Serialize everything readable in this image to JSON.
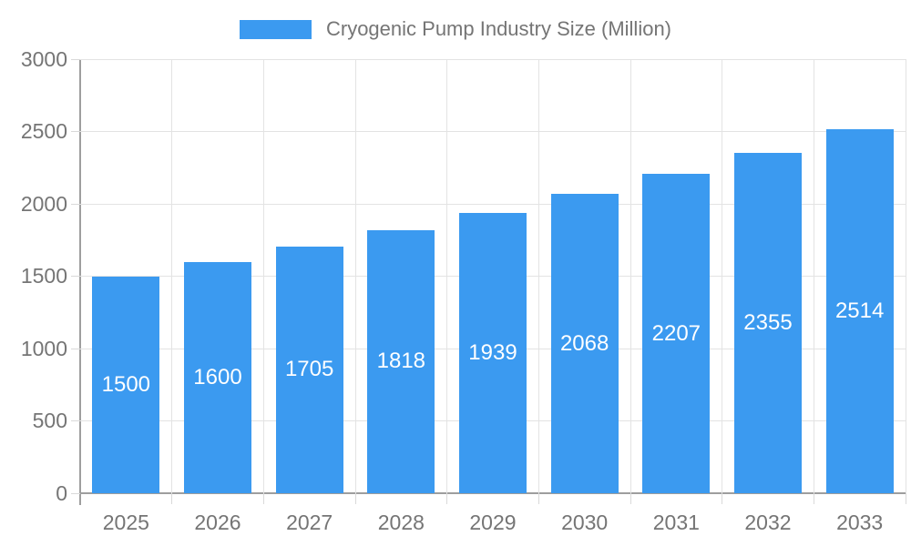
{
  "chart_data": {
    "type": "bar",
    "title": "Cryogenic Pump Industry Size (Million)",
    "legend": [
      {
        "label": "Cryogenic Pump Industry Size (Million)"
      }
    ],
    "legend_position": "top",
    "categories": [
      "2025",
      "2026",
      "2027",
      "2028",
      "2029",
      "2030",
      "2031",
      "2032",
      "2033"
    ],
    "series": [
      {
        "name": "Cryogenic Pump Industry Size (Million)",
        "values": [
          1500,
          1600,
          1705,
          1818,
          1939,
          2068,
          2207,
          2355,
          2514
        ]
      }
    ],
    "bar_value_labels": [
      "1500",
      "1600",
      "1705",
      "1818",
      "1939",
      "2068",
      "2207",
      "2355",
      "2514"
    ],
    "xlabel": "",
    "ylabel": "",
    "ylim": [
      0,
      3000
    ],
    "y_ticks": [
      0,
      500,
      1000,
      1500,
      2000,
      2500,
      3000
    ],
    "grid": true,
    "colors": {
      "bar": "#3B9AF0",
      "bar_value_text": "#ffffff",
      "axis_text": "#757575",
      "grid_line": "#e3e3e3",
      "tick_line": "#d9d9d9",
      "axis_line": "#9e9e9e",
      "background": "#ffffff"
    }
  }
}
